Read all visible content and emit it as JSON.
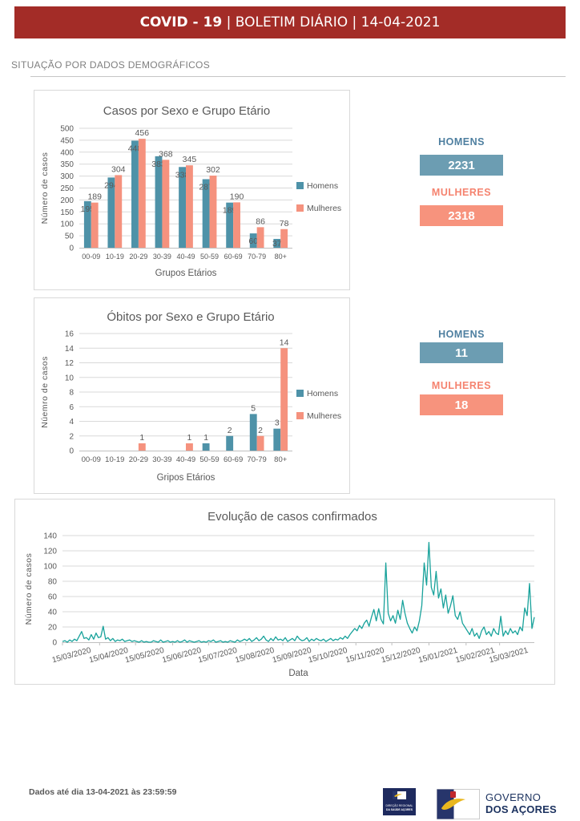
{
  "header": {
    "title_bold": "COVID - 19",
    "title_rest": " | BOLETIM DIÁRIO | 14-04-2021"
  },
  "section_title": "SITUAÇÃO POR DADOS DEMOGRÁFICOS",
  "colors": {
    "banner": "#A32C27",
    "homens_bar": "#4E92A8",
    "mulheres_bar": "#F5927E",
    "homens_box": "#6C9DB2",
    "mulheres_box": "#F7937D",
    "homens_label": "#4E7FA0",
    "mulheres_label": "#F5836F",
    "line": "#18A29B",
    "grid": "#D9D9D9",
    "axis": "#BFBFBF",
    "text": "#595959"
  },
  "stats_cases": {
    "homens_label": "HOMENS",
    "homens_value": "2231",
    "mulheres_label": "MULHERES",
    "mulheres_value": "2318"
  },
  "stats_deaths": {
    "homens_label": "HOMENS",
    "homens_value": "11",
    "mulheres_label": "MULHERES",
    "mulheres_value": "18"
  },
  "footer": {
    "note": "Dados até dia 13-04-2021 às 23:59:59",
    "logo_drs": {
      "line1": "DIREÇÃO REGIONAL",
      "line2": "DA SAÚDE AÇORES"
    },
    "logo_gov": {
      "line1": "GOVERNO",
      "line2": "DOS AÇORES"
    }
  },
  "chart_data": [
    {
      "type": "bar",
      "title": "Casos por Sexo e Grupo Etário",
      "xlabel": "Grupos Etários",
      "ylabel": "Número de casos",
      "ylim": [
        0,
        500
      ],
      "ytick": 50,
      "grid": true,
      "legend_position": "right",
      "categories": [
        "00-09",
        "10-19",
        "20-29",
        "30-39",
        "40-49",
        "50-59",
        "60-69",
        "70-79",
        "80+"
      ],
      "series": [
        {
          "name": "Homens",
          "color": "homens_bar",
          "label_pos": "inside",
          "values": [
            195,
            294,
            448,
            383,
            338,
            287,
            189,
            60,
            37
          ]
        },
        {
          "name": "Mulheres",
          "color": "mulheres_bar",
          "label_pos": "above",
          "values": [
            189,
            304,
            456,
            368,
            345,
            302,
            190,
            86,
            78
          ]
        }
      ]
    },
    {
      "type": "bar",
      "title": "Óbitos por Sexo e Grupo Etário",
      "xlabel": "Gripos Etários",
      "ylabel": "Núemro de casos",
      "ylim": [
        0,
        16
      ],
      "ytick": 2,
      "grid": true,
      "legend_position": "right",
      "categories": [
        "00-09",
        "10-19",
        "20-29",
        "30-39",
        "40-49",
        "50-59",
        "60-69",
        "70-79",
        "80+"
      ],
      "series": [
        {
          "name": "Homens",
          "color": "homens_bar",
          "label_pos": "above",
          "values": [
            0,
            0,
            0,
            0,
            0,
            1,
            2,
            5,
            3
          ]
        },
        {
          "name": "Mulheres",
          "color": "mulheres_bar",
          "label_pos": "above",
          "values": [
            0,
            0,
            1,
            0,
            1,
            0,
            0,
            2,
            14
          ]
        }
      ]
    },
    {
      "type": "line",
      "title": "Evolução de casos confirmados",
      "xlabel": "Data",
      "ylabel": "Número de casos",
      "ylim": [
        0,
        140
      ],
      "ytick": 20,
      "grid": true,
      "legend_position": "none",
      "sample_interval_days": 2,
      "total_days": 394,
      "x_tick_days": [
        0,
        31,
        61,
        92,
        122,
        153,
        184,
        214,
        245,
        275,
        306,
        337,
        365
      ],
      "x_tick_labels": [
        "15/03/2020",
        "15/04/2020",
        "15/05/2020",
        "15/06/2020",
        "15/07/2020",
        "15/08/2020",
        "15/09/2020",
        "15/10/2020",
        "15/11/2020",
        "15/12/2020",
        "15/01/2021",
        "15/02/2021",
        "15/03/2021"
      ],
      "values": [
        1,
        2,
        0,
        3,
        1,
        4,
        2,
        8,
        14,
        5,
        6,
        3,
        10,
        4,
        12,
        6,
        7,
        21,
        4,
        6,
        2,
        5,
        1,
        3,
        2,
        4,
        1,
        2,
        3,
        1,
        2,
        1,
        0,
        2,
        0,
        1,
        0,
        0,
        2,
        1,
        0,
        3,
        0,
        1,
        2,
        0,
        1,
        0,
        2,
        0,
        1,
        3,
        0,
        2,
        1,
        0,
        1,
        2,
        0,
        1,
        0,
        2,
        1,
        3,
        0,
        1,
        2,
        0,
        1,
        0,
        2,
        1,
        0,
        3,
        1,
        2,
        4,
        2,
        5,
        1,
        3,
        6,
        2,
        4,
        8,
        3,
        1,
        5,
        2,
        7,
        3,
        4,
        2,
        6,
        1,
        3,
        5,
        2,
        8,
        4,
        2,
        3,
        6,
        1,
        4,
        2,
        5,
        3,
        2,
        4,
        1,
        3,
        5,
        2,
        4,
        3,
        6,
        4,
        8,
        5,
        10,
        14,
        18,
        15,
        22,
        18,
        25,
        29,
        21,
        33,
        43,
        28,
        44,
        30,
        24,
        104,
        38,
        28,
        35,
        25,
        42,
        30,
        55,
        38,
        25,
        18,
        12,
        20,
        15,
        28,
        48,
        104,
        75,
        131,
        72,
        62,
        93,
        58,
        70,
        45,
        62,
        38,
        48,
        61,
        35,
        30,
        40,
        25,
        20,
        15,
        10,
        18,
        8,
        12,
        5,
        15,
        20,
        10,
        14,
        8,
        18,
        12,
        10,
        34,
        8,
        15,
        10,
        18,
        12,
        15,
        10,
        20,
        15,
        45,
        35,
        77,
        18,
        33
      ]
    }
  ]
}
